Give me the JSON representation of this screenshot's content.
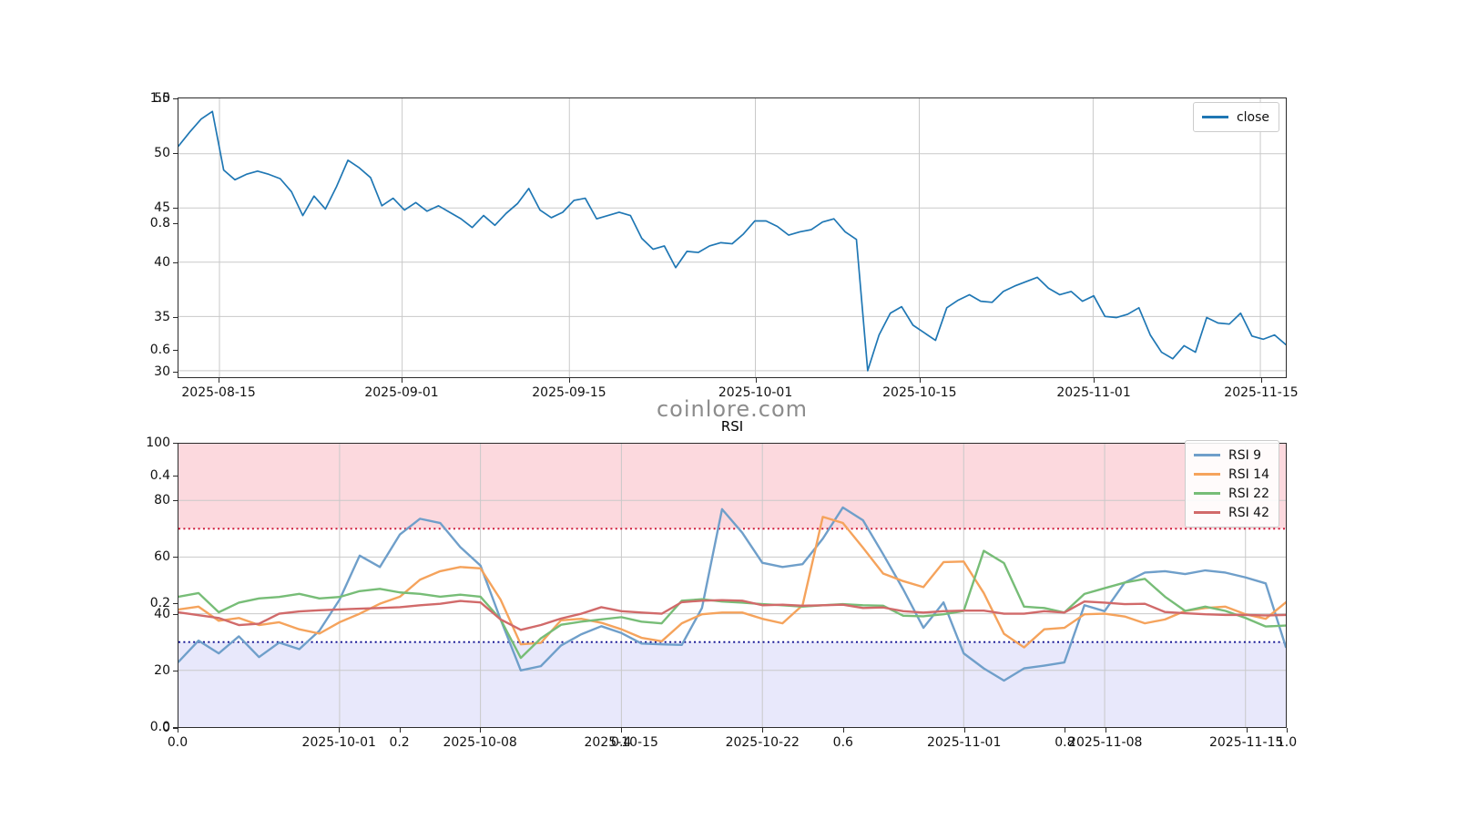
{
  "watermark": "coinlore.com",
  "colors": {
    "close_line": "#1f77b4",
    "rsi9": "#6f9fca",
    "rsi14": "#f5a35c",
    "rsi22": "#77bd77",
    "rsi42": "#d16a6a",
    "overbought_band": "rgba(247,156,168,0.38)",
    "oversold_band": "rgba(148,148,235,0.22)",
    "overbought_line": "#cc1133",
    "oversold_line": "#0b0b8f",
    "grid": "#c9c9c9",
    "spine": "#2b2b2b"
  },
  "chart_data": [
    {
      "type": "line",
      "title": "",
      "x_start_label": "2025-08-15",
      "x_end_label": "2025-11-15",
      "ylim": [
        29.4,
        55.1
      ],
      "gridlines_y": [
        30,
        35,
        40,
        45,
        50
      ],
      "yticks": [
        {
          "label": "55",
          "v": 55
        },
        {
          "label": "50",
          "v": 50
        },
        {
          "label": "45",
          "v": 45
        },
        {
          "label": "40",
          "v": 40
        },
        {
          "label": "35",
          "v": 35
        },
        {
          "label": "30",
          "v": 30
        }
      ],
      "yticks_secondary": [
        {
          "label": "1.0",
          "v": 55.05
        },
        {
          "label": "0.8",
          "v": 43.55
        },
        {
          "label": "0.6",
          "v": 31.95
        }
      ],
      "xticks": [
        {
          "label": "2025-08-15",
          "f": 0.037,
          "grid": true
        },
        {
          "label": "2025-09-01",
          "f": 0.202,
          "grid": true
        },
        {
          "label": "2025-09-15",
          "f": 0.353,
          "grid": true
        },
        {
          "label": "2025-10-01",
          "f": 0.521,
          "grid": true
        },
        {
          "label": "2025-10-15",
          "f": 0.669,
          "grid": true
        },
        {
          "label": "2025-11-01",
          "f": 0.826,
          "grid": true
        },
        {
          "label": "2025-11-15",
          "f": 0.977,
          "grid": true
        }
      ],
      "legend": {
        "position": "top-right",
        "entries": [
          {
            "label": "close",
            "color": "#1f77b4"
          }
        ]
      },
      "series": [
        {
          "name": "close",
          "color": "#1f77b4",
          "width": 1.7,
          "values": [
            50.7,
            52.0,
            53.2,
            53.9,
            48.5,
            47.6,
            48.1,
            48.4,
            48.1,
            47.7,
            46.5,
            44.3,
            46.1,
            44.9,
            47.0,
            49.4,
            48.7,
            47.8,
            45.2,
            45.9,
            44.8,
            45.5,
            44.7,
            45.2,
            44.6,
            44.0,
            43.2,
            44.3,
            43.4,
            44.5,
            45.4,
            46.8,
            44.8,
            44.1,
            44.6,
            45.7,
            45.9,
            44.0,
            44.3,
            44.6,
            44.3,
            42.2,
            41.2,
            41.5,
            39.5,
            41.0,
            40.9,
            41.5,
            41.8,
            41.7,
            42.6,
            43.8,
            43.8,
            43.3,
            42.5,
            42.8,
            43.0,
            43.7,
            44.0,
            42.8,
            42.1,
            30.0,
            33.3,
            35.3,
            35.9,
            34.2,
            33.5,
            32.8,
            35.8,
            36.5,
            37.0,
            36.4,
            36.3,
            37.3,
            37.8,
            38.2,
            38.6,
            37.6,
            37.0,
            37.3,
            36.4,
            36.9,
            35.0,
            34.9,
            35.2,
            35.8,
            33.3,
            31.7,
            31.1,
            32.3,
            31.7,
            34.9,
            34.4,
            34.3,
            35.3,
            33.2,
            32.9,
            33.3,
            32.4
          ]
        }
      ]
    },
    {
      "type": "line",
      "title": "RSI",
      "x_start_label": "2025-10-01",
      "x_end_label": "2025-11-15",
      "ylim": [
        0,
        100
      ],
      "gridlines_y": [
        20,
        40,
        60,
        80
      ],
      "bands": [
        {
          "from": 70,
          "to": 100,
          "color": "rgba(247,156,168,0.38)"
        },
        {
          "from": 0,
          "to": 30,
          "color": "rgba(148,148,235,0.22)"
        }
      ],
      "hlines": [
        {
          "v": 70,
          "color": "#cc1133"
        },
        {
          "v": 30,
          "color": "#0b0b8f"
        }
      ],
      "yticks": [
        {
          "label": "100",
          "v": 100
        },
        {
          "label": "80",
          "v": 80
        },
        {
          "label": "60",
          "v": 60
        },
        {
          "label": "40",
          "v": 40
        },
        {
          "label": "20",
          "v": 20
        },
        {
          "label": "0",
          "v": 0
        }
      ],
      "yticks_secondary": [
        {
          "label": "0.4",
          "v": 88.5
        },
        {
          "label": "0.2",
          "v": 43.8
        },
        {
          "label": "0.0",
          "v": 0.3
        }
      ],
      "xticks": [
        {
          "label": "0.0",
          "f": 0.0,
          "grid": false
        },
        {
          "label": "2025-10-01",
          "f": 0.1455,
          "grid": true
        },
        {
          "label": "0.2",
          "f": 0.2,
          "grid": false
        },
        {
          "label": "2025-10-08",
          "f": 0.2727,
          "grid": true
        },
        {
          "label": "2025-10-15",
          "f": 0.4,
          "grid": true
        },
        {
          "label": "0.4",
          "f": 0.4,
          "grid": false
        },
        {
          "label": "2025-10-22",
          "f": 0.5273,
          "grid": true
        },
        {
          "label": "0.6",
          "f": 0.6,
          "grid": false
        },
        {
          "label": "2025-11-01",
          "f": 0.7091,
          "grid": true
        },
        {
          "label": "0.8",
          "f": 0.8,
          "grid": false
        },
        {
          "label": "2025-11-08",
          "f": 0.8364,
          "grid": true
        },
        {
          "label": "2025-11-15",
          "f": 0.9636,
          "grid": true
        },
        {
          "label": "1.0",
          "f": 1.0,
          "grid": false
        }
      ],
      "legend": {
        "position": "top-right",
        "entries": [
          {
            "label": "RSI 9",
            "color": "#6f9fca"
          },
          {
            "label": "RSI 14",
            "color": "#f5a35c"
          },
          {
            "label": "RSI 22",
            "color": "#77bd77"
          },
          {
            "label": "RSI 42",
            "color": "#d16a6a"
          }
        ]
      },
      "series": [
        {
          "name": "RSI 9",
          "color": "#6f9fca",
          "width": 2.4,
          "values": [
            23.0,
            30.5,
            26.0,
            32.0,
            24.7,
            29.8,
            27.5,
            34.0,
            45.0,
            60.5,
            56.5,
            68.0,
            73.5,
            72.0,
            63.5,
            57.0,
            38.0,
            20.0,
            21.5,
            28.8,
            32.7,
            35.6,
            33.2,
            29.5,
            29.2,
            29.0,
            42.0,
            76.9,
            68.6,
            58.0,
            56.5,
            57.5,
            66.5,
            77.5,
            73.0,
            61.0,
            48.6,
            35.0,
            44.0,
            26.0,
            20.7,
            16.4,
            20.7,
            21.7,
            22.8,
            43.0,
            40.9,
            51.0,
            54.5,
            55.0,
            54.0,
            55.3,
            54.5,
            52.8,
            50.7,
            28.3
          ]
        },
        {
          "name": "RSI 14",
          "color": "#f5a35c",
          "width": 2.4,
          "values": [
            41.5,
            42.5,
            37.5,
            38.5,
            36.0,
            37.0,
            34.5,
            33.0,
            37.0,
            40.0,
            43.5,
            46.0,
            52.0,
            55.0,
            56.5,
            56.0,
            45.0,
            29.2,
            29.7,
            37.7,
            38.2,
            36.8,
            34.5,
            31.5,
            30.3,
            36.6,
            39.8,
            40.4,
            40.4,
            38.2,
            36.6,
            43.0,
            74.2,
            72.0,
            63.3,
            54.2,
            51.5,
            49.4,
            58.2,
            58.4,
            47.3,
            32.9,
            28.1,
            34.5,
            35.0,
            39.8,
            40.0,
            39.0,
            36.6,
            38.0,
            41.0,
            42.0,
            42.5,
            39.8,
            38.2,
            44.0
          ]
        },
        {
          "name": "RSI 22",
          "color": "#77bd77",
          "width": 2.4,
          "values": [
            46.0,
            47.3,
            40.5,
            43.9,
            45.4,
            45.9,
            47.0,
            45.4,
            45.9,
            48.0,
            48.8,
            47.5,
            47.0,
            46.0,
            46.7,
            46.0,
            38.0,
            24.4,
            31.3,
            36.1,
            37.2,
            38.0,
            38.8,
            37.2,
            36.6,
            44.6,
            45.1,
            44.3,
            43.9,
            43.4,
            43.0,
            42.5,
            43.0,
            43.4,
            43.0,
            42.8,
            39.3,
            39.1,
            39.8,
            41.0,
            62.2,
            57.9,
            42.5,
            42.0,
            40.4,
            47.0,
            49.0,
            51.0,
            52.3,
            46.0,
            41.0,
            42.5,
            41.0,
            38.5,
            35.5,
            35.8
          ]
        },
        {
          "name": "RSI 42",
          "color": "#d16a6a",
          "width": 2.4,
          "values": [
            40.5,
            39.5,
            38.5,
            36.0,
            36.5,
            40.0,
            40.8,
            41.2,
            41.5,
            41.8,
            42.0,
            42.3,
            43.0,
            43.5,
            44.5,
            44.0,
            38.0,
            34.3,
            36.0,
            38.3,
            40.0,
            42.3,
            40.9,
            40.4,
            40.0,
            44.1,
            44.6,
            44.8,
            44.6,
            43.0,
            43.2,
            42.8,
            43.0,
            43.2,
            42.0,
            42.2,
            40.9,
            40.4,
            40.9,
            41.1,
            41.1,
            40.0,
            40.0,
            40.9,
            40.4,
            44.3,
            43.9,
            43.4,
            43.5,
            40.6,
            40.2,
            39.8,
            39.6,
            39.6,
            39.4,
            39.6
          ]
        }
      ]
    }
  ]
}
